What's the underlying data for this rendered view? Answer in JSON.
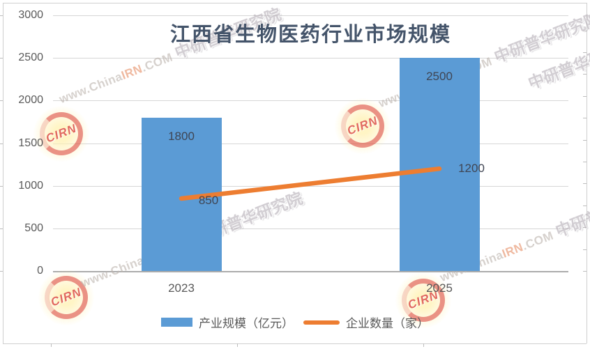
{
  "title": "江西省生物医药行业市场规模",
  "chart_data": {
    "type": "combo",
    "categories": [
      "2023",
      "2025"
    ],
    "series": [
      {
        "name": "产业规模（亿元）",
        "type": "bar",
        "values": [
          1800,
          2500
        ],
        "labels": [
          "1800",
          "2500"
        ],
        "color": "#5b9bd5"
      },
      {
        "name": "企业数量（家）",
        "type": "line",
        "values": [
          850,
          1200
        ],
        "labels": [
          "850",
          "1200"
        ],
        "color": "#ed7d31"
      }
    ],
    "title": "江西省生物医药行业市场规模",
    "xlabel": "",
    "ylabel": "",
    "ylim": [
      0,
      3000
    ],
    "yticks": [
      "3000",
      "2500",
      "2000",
      "1500",
      "1000",
      "500",
      "0"
    ],
    "grid": true,
    "legend_position": "bottom"
  },
  "legend": {
    "bar_label": "产业规模（亿元）",
    "line_label": "企业数量（家）"
  },
  "watermark": {
    "logo_text": "CIRN",
    "url_prefix": "www.China",
    "url_mid": "IRN",
    "url_suffix": ".COM",
    "cn_text": "中研普华研究院"
  },
  "colors": {
    "bar": "#5b9bd5",
    "line": "#ed7d31",
    "grid": "#d6d6d6",
    "axis": "#ababab",
    "tick_label": "#595959",
    "data_label": "#3f4553",
    "title": "#44546a"
  }
}
